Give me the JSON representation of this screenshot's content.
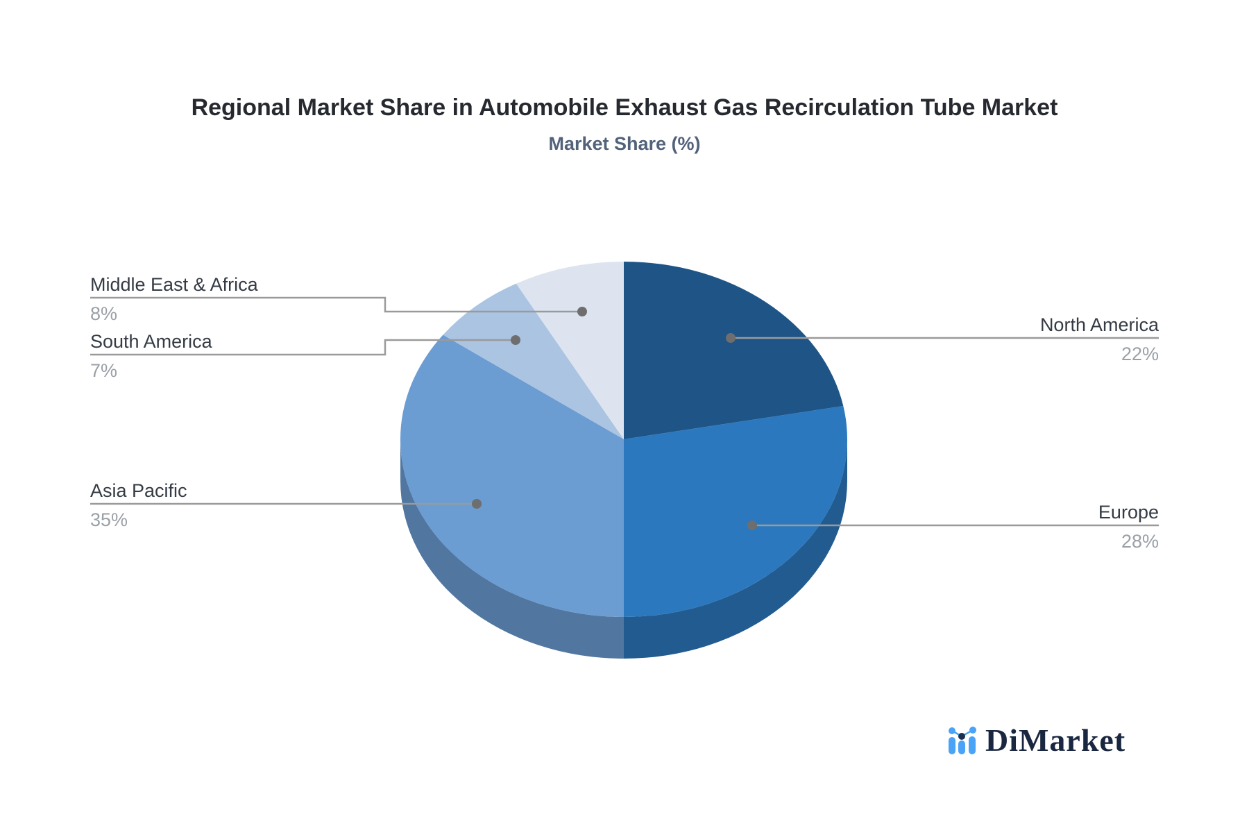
{
  "header": {
    "title": "Regional Market Share in Automobile Exhaust Gas Recirculation Tube Market",
    "subtitle": "Market Share (%)"
  },
  "chart_data": {
    "type": "pie",
    "title": "Regional Market Share in Automobile Exhaust Gas Recirculation Tube Market",
    "subtitle": "Market Share (%)",
    "unit": "%",
    "direction": "clockwise",
    "start_angle_deg": 0,
    "effect_3d": true,
    "legend_position": "none",
    "label_style": "callout-with-leader-lines",
    "series": [
      {
        "name": "North America",
        "value": 22,
        "label": "22%",
        "color": "#1e5486"
      },
      {
        "name": "Europe",
        "value": 28,
        "label": "28%",
        "color": "#2b78be"
      },
      {
        "name": "Asia Pacific",
        "value": 35,
        "label": "35%",
        "color": "#6b9cd2"
      },
      {
        "name": "South America",
        "value": 7,
        "label": "7%",
        "color": "#aac4e2"
      },
      {
        "name": "Middle East & Africa",
        "value": 8,
        "label": "8%",
        "color": "#dde4ef"
      }
    ]
  },
  "branding": {
    "logo_text": "DiMarket",
    "logo_icon": "bar-line-chart-logo-icon",
    "logo_accent_color": "#4aa3f7",
    "logo_text_color": "#1a2740"
  }
}
